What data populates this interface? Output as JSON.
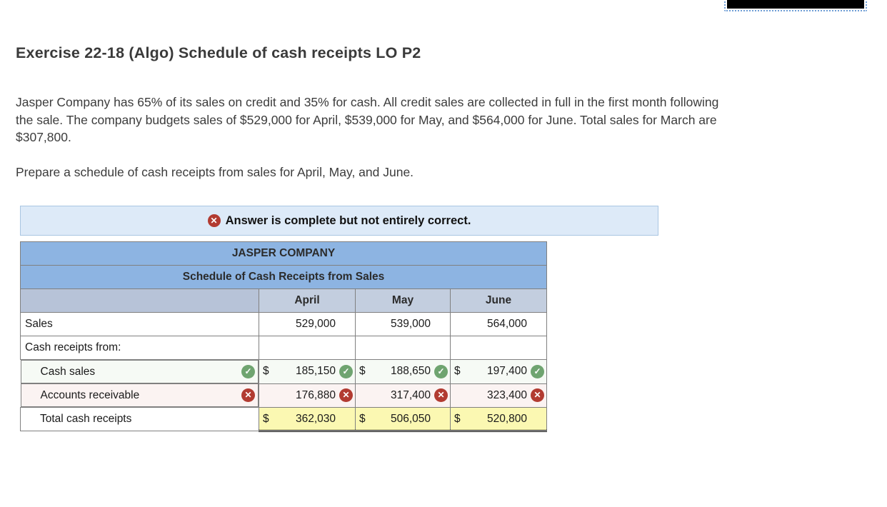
{
  "header": {
    "redacted_control": "focused-control"
  },
  "exercise": {
    "title": "Exercise 22-18 (Algo) Schedule of cash receipts LO P2",
    "intro_lines": [
      "Jasper Company has 65% of its sales on credit and 35% for cash. All credit sales are collected in full in the first month following",
      "the sale. The company budgets sales of $529,000 for April, $539,000 for May, and $564,000 for June. Total sales for March are",
      "$307,800."
    ],
    "instruction": "Prepare a schedule of cash receipts from sales for April, May, and June."
  },
  "banner": {
    "text": "Answer is complete but not entirely correct.",
    "status": "partially-incorrect"
  },
  "icons": {
    "correct": "✓",
    "incorrect": "✕"
  },
  "colors": {
    "correct_green": "#6fa470",
    "incorrect_red": "#b23b31",
    "header_blue": "#8db4e2",
    "subheader_blue": "#c3cedf",
    "banner_blue": "#ddeaf8",
    "answer_yellow": "#fbf8b2",
    "row_correct_bg": "#f6faf5",
    "row_incorrect_bg": "#fbf3f2"
  },
  "table": {
    "company": "JASPER COMPANY",
    "schedule_title": "Schedule of Cash Receipts from Sales",
    "columns": [
      "April",
      "May",
      "June"
    ],
    "currency": "$",
    "sales": {
      "label": "Sales",
      "values": [
        "529,000",
        "539,000",
        "564,000"
      ]
    },
    "section_label": "Cash receipts from:",
    "cash_sales": {
      "label": "Cash sales",
      "grade": "correct",
      "values": [
        "185,150",
        "188,650",
        "197,400"
      ]
    },
    "accounts_receivable": {
      "label": "Accounts receivable",
      "grade": "incorrect",
      "values": [
        "176,880",
        "317,400",
        "323,400"
      ]
    },
    "total": {
      "label": "Total cash receipts",
      "values": [
        "362,030",
        "506,050",
        "520,800"
      ]
    }
  }
}
